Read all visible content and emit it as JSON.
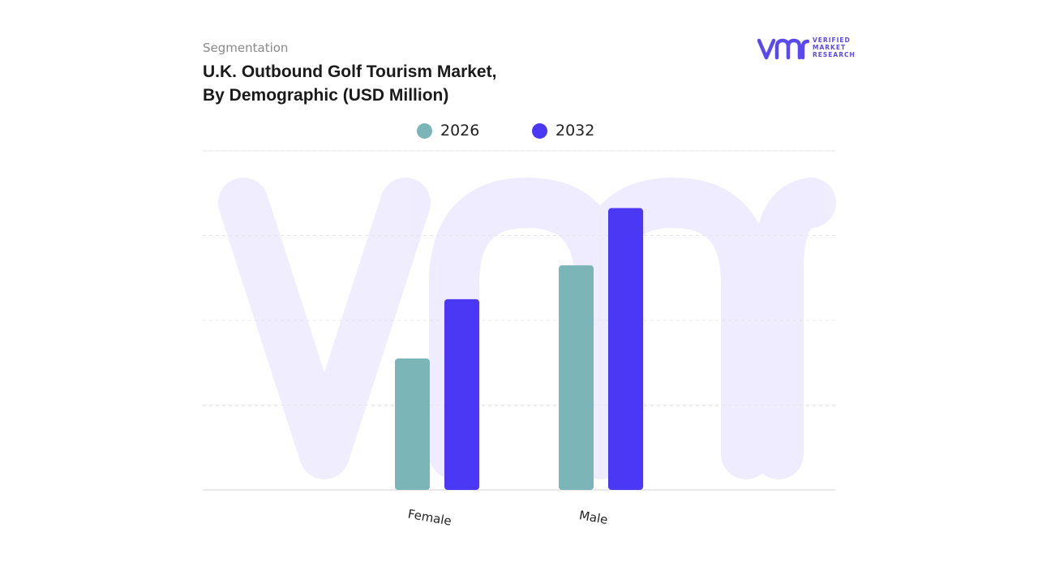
{
  "header": {
    "segment_label": "Segmentation",
    "title_line1": "U.K. Outbound Golf Tourism Market,",
    "title_line2": "By Demographic (USD Million)"
  },
  "logo": {
    "mark": "vmr",
    "line1": "VERIFIED",
    "line2": "MARKET",
    "line3": "RESEARCH",
    "color": "#5a48f0"
  },
  "chart_data": {
    "type": "bar",
    "title": "U.K. Outbound Golf Tourism Market, By Demographic (USD Million)",
    "categories": [
      "Female",
      "Male"
    ],
    "series": [
      {
        "name": "2026",
        "color": "#7bb5b8",
        "values": [
          31,
          53
        ]
      },
      {
        "name": "2032",
        "color": "#4a38f5",
        "values": [
          45,
          66.5
        ]
      }
    ],
    "xlabel": "",
    "ylabel": "",
    "ylim": [
      0,
      80
    ],
    "grid": true,
    "legend_position": "top-center",
    "watermark": "vmr"
  }
}
